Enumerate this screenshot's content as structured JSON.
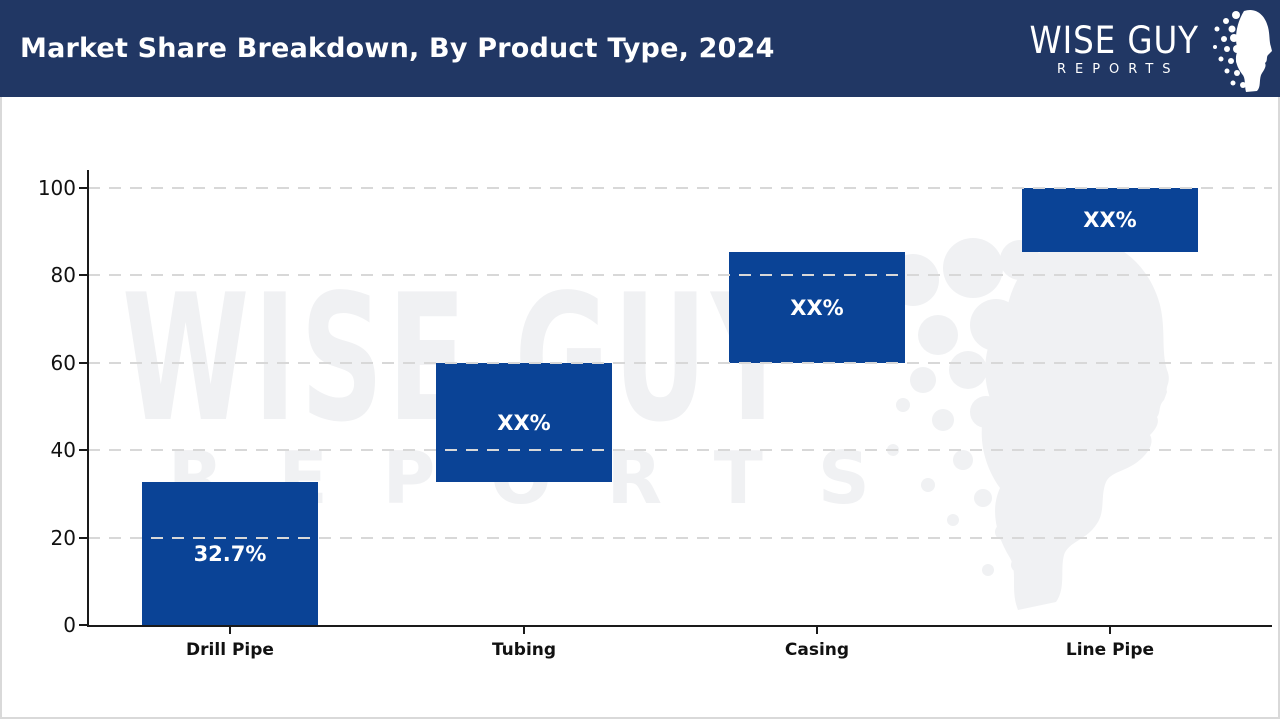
{
  "header": {
    "title": "Market Share Breakdown, By Product Type, 2024",
    "logo": {
      "line1": "WISE GUY",
      "line2": "REPORTS"
    }
  },
  "watermark": {
    "line1": "WISE GUY",
    "line2": "REPORTS"
  },
  "colors": {
    "header_bg": "#213764",
    "title_text": "#ffffff",
    "bar": "#0a4396",
    "bar_label": "#ffffff",
    "grid": "#d8d8d8",
    "axis": "#1a1a1a",
    "text": "#111111",
    "watermark": "#f0f1f3",
    "border": "#d9d9d9"
  },
  "chart_data": {
    "type": "bar",
    "subtype": "waterfall",
    "title": "Market Share Breakdown, By Product Type, 2024",
    "categories": [
      "Drill Pipe",
      "Tubing",
      "Casing",
      "Line Pipe"
    ],
    "bars": [
      {
        "category": "Drill Pipe",
        "start": 0,
        "end": 32.7,
        "label": "32.7%"
      },
      {
        "category": "Tubing",
        "start": 32.7,
        "end": 60,
        "label": "XX%"
      },
      {
        "category": "Casing",
        "start": 60,
        "end": 85.3,
        "label": "XX%"
      },
      {
        "category": "Line Pipe",
        "start": 85.3,
        "end": 100,
        "label": "XX%"
      }
    ],
    "ylim": [
      0,
      100
    ],
    "yticks": [
      0,
      20,
      40,
      60,
      80,
      100
    ],
    "grid": "horizontal-dashed",
    "grid_above_bars": true,
    "legend": "none",
    "bar_color": "#0a4396",
    "value_labels_inside": true
  }
}
